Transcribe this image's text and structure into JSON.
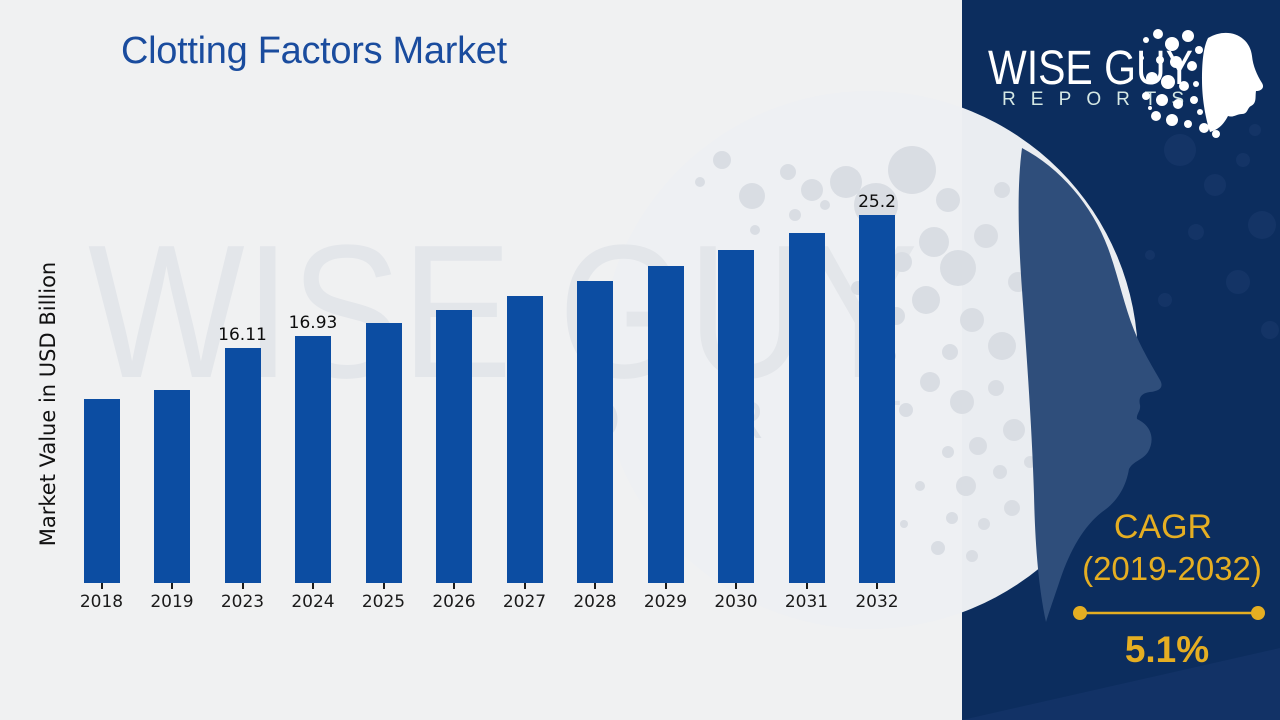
{
  "colors": {
    "background": "#f0f1f2",
    "bar": "#0c4da2",
    "panel_bg": "#0c2d5e",
    "accent_gold": "#e5ae22",
    "title_blue": "#1a4c9e",
    "watermark_gray": "#e3e6ea",
    "watermark_gray2": "#dde1e7",
    "face_blue": "#2f4e7b"
  },
  "chart_data": {
    "type": "bar",
    "title": "Clotting Factors Market",
    "xlabel": "",
    "ylabel": "Market Value in USD Billion",
    "unit": "USD Billion",
    "categories": [
      "2018",
      "2019",
      "2023",
      "2024",
      "2025",
      "2026",
      "2027",
      "2028",
      "2029",
      "2030",
      "2031",
      "2032"
    ],
    "values": [
      12.6,
      13.2,
      16.11,
      16.93,
      17.79,
      18.7,
      19.66,
      20.66,
      21.71,
      22.82,
      23.98,
      25.2
    ],
    "data_labels": [
      "",
      "",
      "16.11",
      "16.93",
      "",
      "",
      "",
      "",
      "",
      "",
      "",
      "25.2"
    ],
    "ylim": [
      0,
      27
    ],
    "grid": false,
    "legend": false,
    "bar_color": "#0c4da2"
  },
  "watermark": {
    "line1": "WISE GUY",
    "line2": "REPORTS"
  },
  "brand": {
    "name": "WISE GUY",
    "sub": "REPORTS"
  },
  "cagr": {
    "label": "CAGR",
    "range": "(2019-2032)",
    "value": "5.1%"
  }
}
